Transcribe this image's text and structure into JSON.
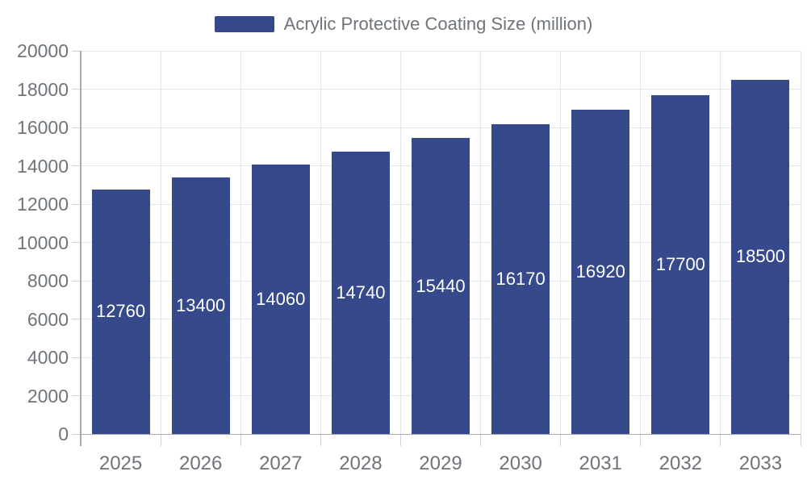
{
  "chart_data": {
    "type": "bar",
    "title": "",
    "legend": "Acrylic Protective Coating Size (million)",
    "legend_position": "top",
    "categories": [
      "2025",
      "2026",
      "2027",
      "2028",
      "2029",
      "2030",
      "2031",
      "2032",
      "2033"
    ],
    "values": [
      12760,
      13400,
      14060,
      14740,
      15440,
      16170,
      16920,
      17700,
      18500
    ],
    "xlabel": "",
    "ylabel": "",
    "ylim": [
      0,
      20000
    ],
    "ytick_step": 2000,
    "yticks": [
      0,
      2000,
      4000,
      6000,
      8000,
      10000,
      12000,
      14000,
      16000,
      18000,
      20000
    ],
    "grid": true,
    "colors": {
      "bar": "#36498b",
      "bar_label_text": "#ffffff",
      "axis_text": "#6e7479",
      "legend_text": "#6e7479",
      "gridline": "#e4e6ec",
      "axis_line": "#a8aaaf",
      "tick": "#cfd1d6"
    }
  }
}
